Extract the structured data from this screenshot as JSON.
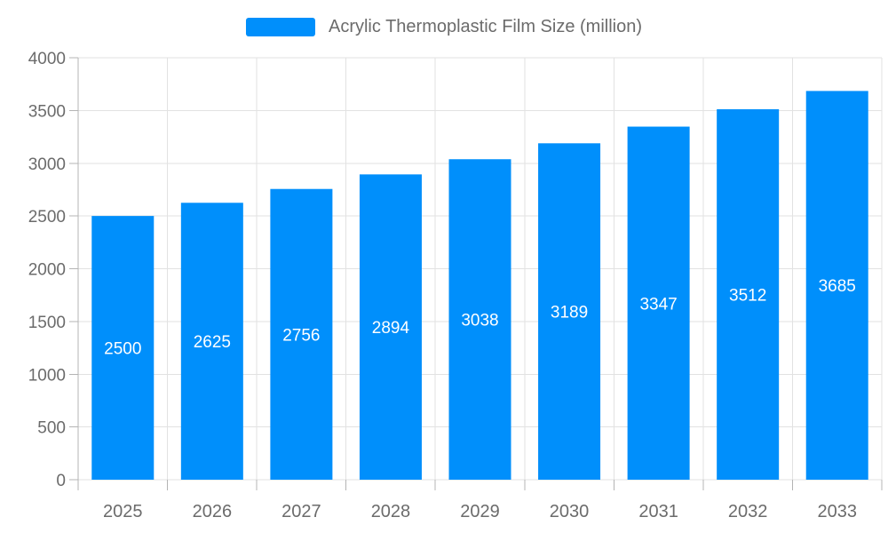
{
  "chart_data": {
    "type": "bar",
    "title": "Acrylic Thermoplastic Film Size (million)",
    "legend": {
      "label": "Acrylic Thermoplastic Film Size (million)",
      "position": "top"
    },
    "series": [
      {
        "name": "Acrylic Thermoplastic Film Size (million)",
        "values": [
          2500,
          2625,
          2756,
          2894,
          3038,
          3189,
          3347,
          3512,
          3685
        ]
      }
    ],
    "categories": [
      "2025",
      "2026",
      "2027",
      "2028",
      "2029",
      "2030",
      "2031",
      "2032",
      "2033"
    ],
    "bar_value_labels": [
      "2500",
      "2625",
      "2756",
      "2894",
      "3038",
      "3189",
      "3347",
      "3512",
      "3685"
    ],
    "xlabel": "",
    "ylabel": "",
    "ylim": [
      0,
      4000
    ],
    "ytick_step": 500,
    "ytick_labels": [
      "0",
      "500",
      "1000",
      "1500",
      "2000",
      "2500",
      "3000",
      "3500",
      "4000"
    ],
    "grid": true,
    "colors": {
      "bar": "#008FFB",
      "grid": "#e2e2e2",
      "axis": "#b4b4b4",
      "tick": "#b4b4b4",
      "axis_label": "#6b6b6b",
      "value_label": "#ffffff",
      "background": "#ffffff"
    }
  }
}
